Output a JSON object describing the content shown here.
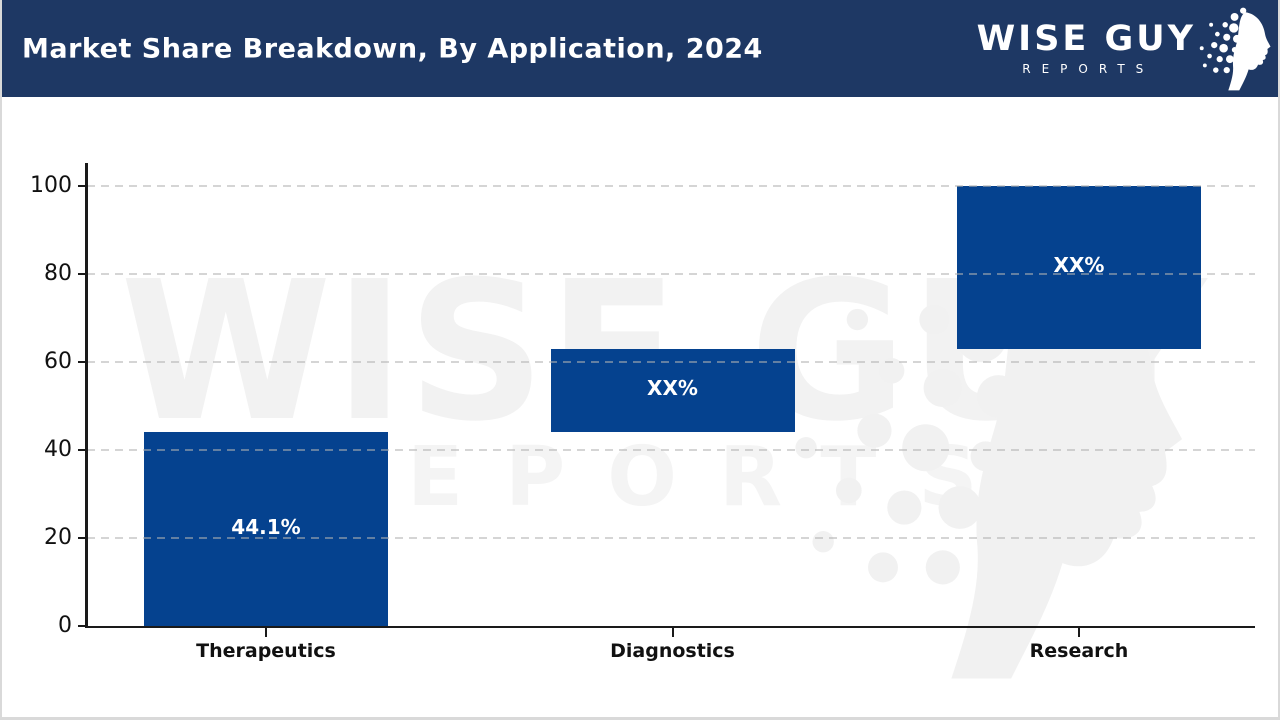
{
  "header": {
    "title": "Market Share Breakdown, By Application, 2024",
    "bg_color": "#1e3864",
    "text_color": "#ffffff",
    "logo": {
      "wordmark": "WISE GUY",
      "subline": "REPORTS"
    }
  },
  "watermark": {
    "wordmark": "WISE GUY",
    "subline": "REPORTS",
    "color": "#f2f2f2"
  },
  "chart_data": {
    "type": "bar",
    "subtype": "floating-waterfall",
    "title": "Market Share Breakdown, By Application, 2024",
    "categories": [
      "Therapeutics",
      "Diagnostics",
      "Research"
    ],
    "segments": [
      {
        "category": "Therapeutics",
        "start": 0,
        "end": 44.1,
        "label": "44.1%"
      },
      {
        "category": "Diagnostics",
        "start": 44.1,
        "end": 63.0,
        "label": "XX%"
      },
      {
        "category": "Research",
        "start": 63.0,
        "end": 100,
        "label": "XX%"
      }
    ],
    "ylim": [
      0,
      100
    ],
    "yticks": [
      0,
      20,
      40,
      60,
      80,
      100
    ],
    "grid": "horizontal-dashed",
    "legend": "none",
    "bar_color": "#05428f",
    "value_label_color": "#ffffff",
    "axis_color": "#1a1a1a"
  }
}
